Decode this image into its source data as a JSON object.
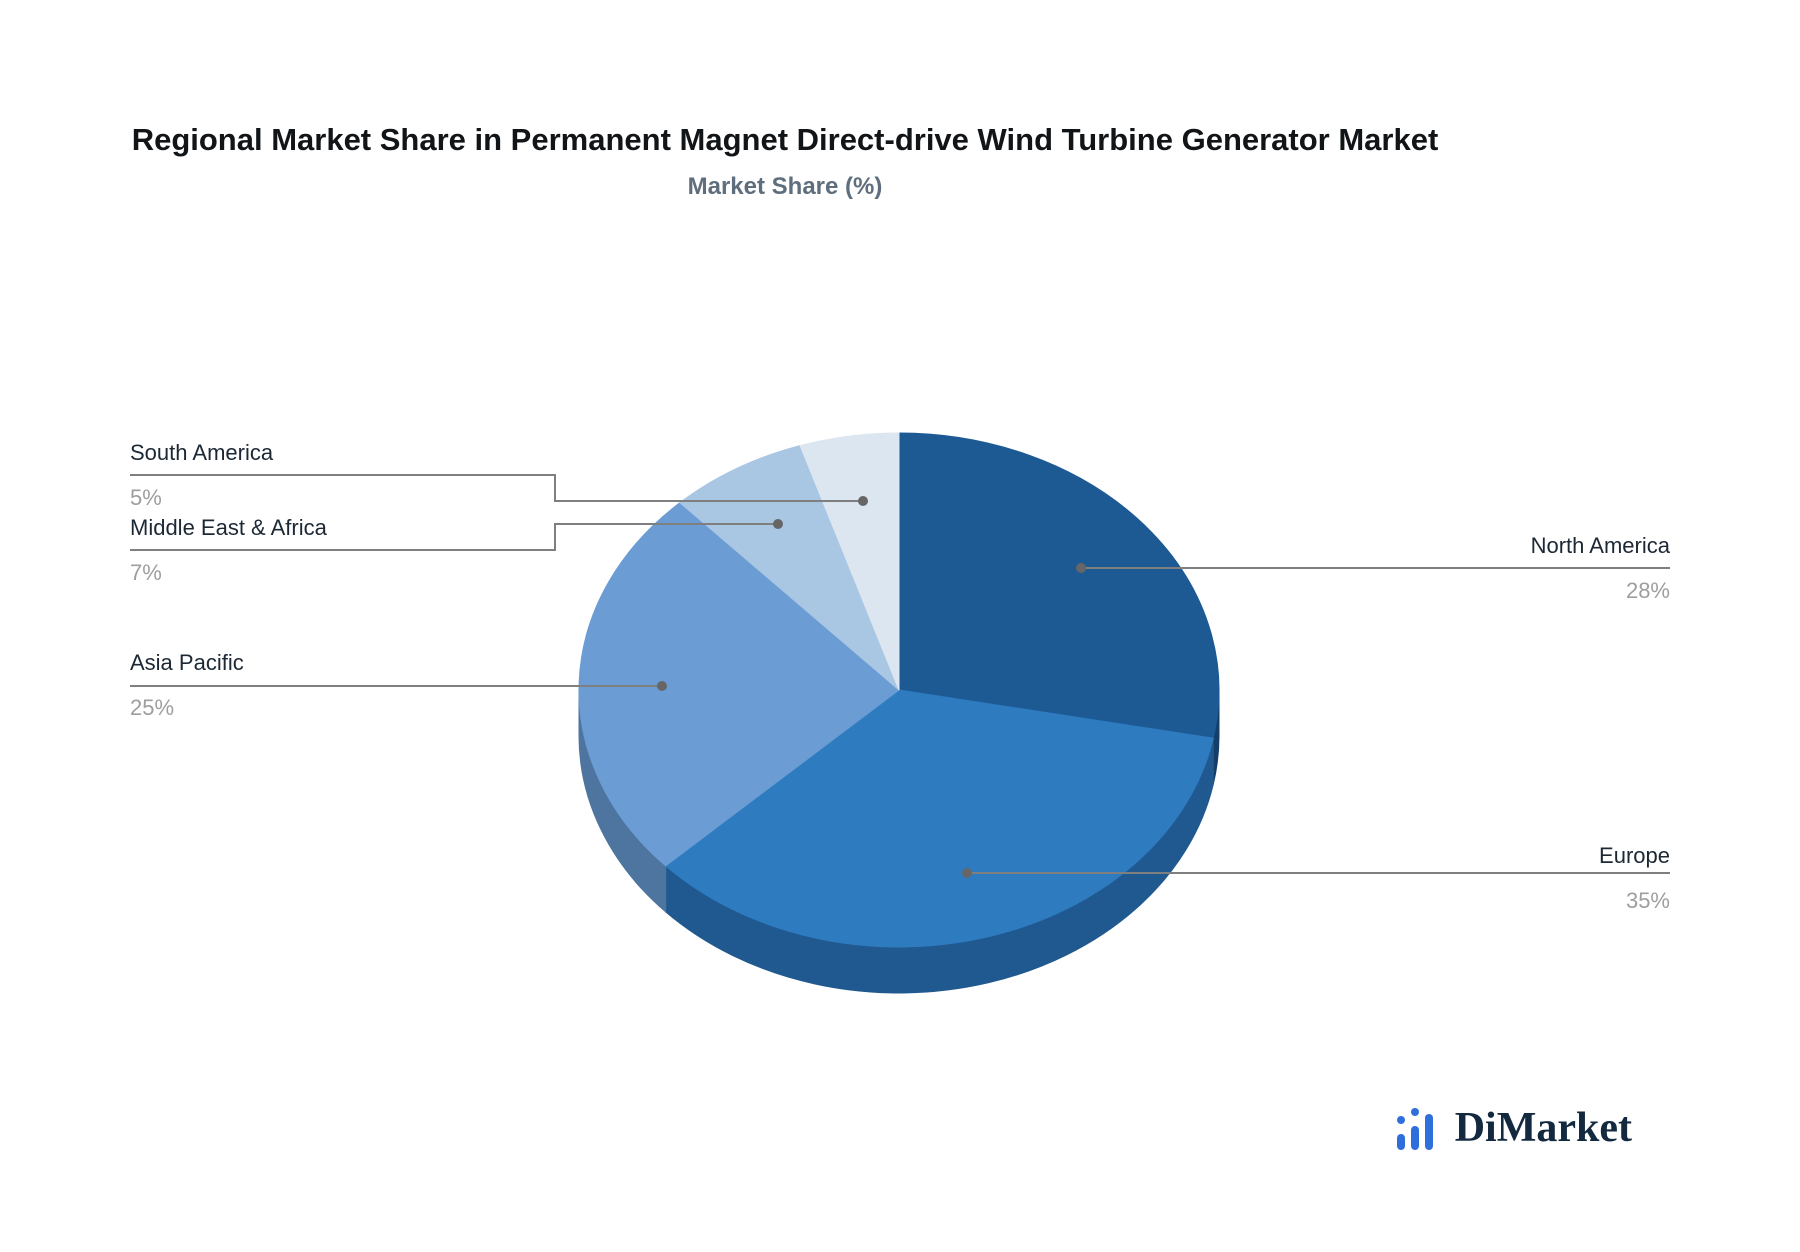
{
  "header": {
    "title": "Regional Market Share in Permanent Magnet Direct-drive Wind Turbine Generator Market",
    "subtitle": "Market Share (%)"
  },
  "chart_data": {
    "type": "pie",
    "title": "Regional Market Share in Permanent Magnet Direct-drive Wind Turbine Generator Market",
    "subtitle": "Market Share (%)",
    "unit": "%",
    "style": "3d-pie",
    "clockwise": true,
    "start_angle_deg": 0,
    "legend_position": "connector-labels",
    "slices": [
      {
        "name": "North America",
        "value": 28,
        "pct_label": "28%",
        "color": "#1d5a94",
        "side_color": "#133f69"
      },
      {
        "name": "Europe",
        "value": 35,
        "pct_label": "35%",
        "color": "#2e7bc0",
        "side_color": "#20598f"
      },
      {
        "name": "Asia Pacific",
        "value": 25,
        "pct_label": "25%",
        "color": "#6b9cd4",
        "side_color": "#4d759f"
      },
      {
        "name": "Middle East & Africa",
        "value": 7,
        "pct_label": "7%",
        "color": "#a9c6e3",
        "side_color": "#7e9ab8"
      },
      {
        "name": "South America",
        "value": 5,
        "pct_label": "5%",
        "color": "#dce6f1",
        "side_color": "#aebfd2"
      }
    ],
    "label_color": "#1c2834",
    "pct_color": "#9e9e9e",
    "leader_color": "#7f7f7f"
  },
  "branding": {
    "logo_text": "DiMarket",
    "logo_icon": "bar-chart-icon",
    "logo_icon_color": "#2f6fdb",
    "logo_text_color": "#13293f"
  }
}
